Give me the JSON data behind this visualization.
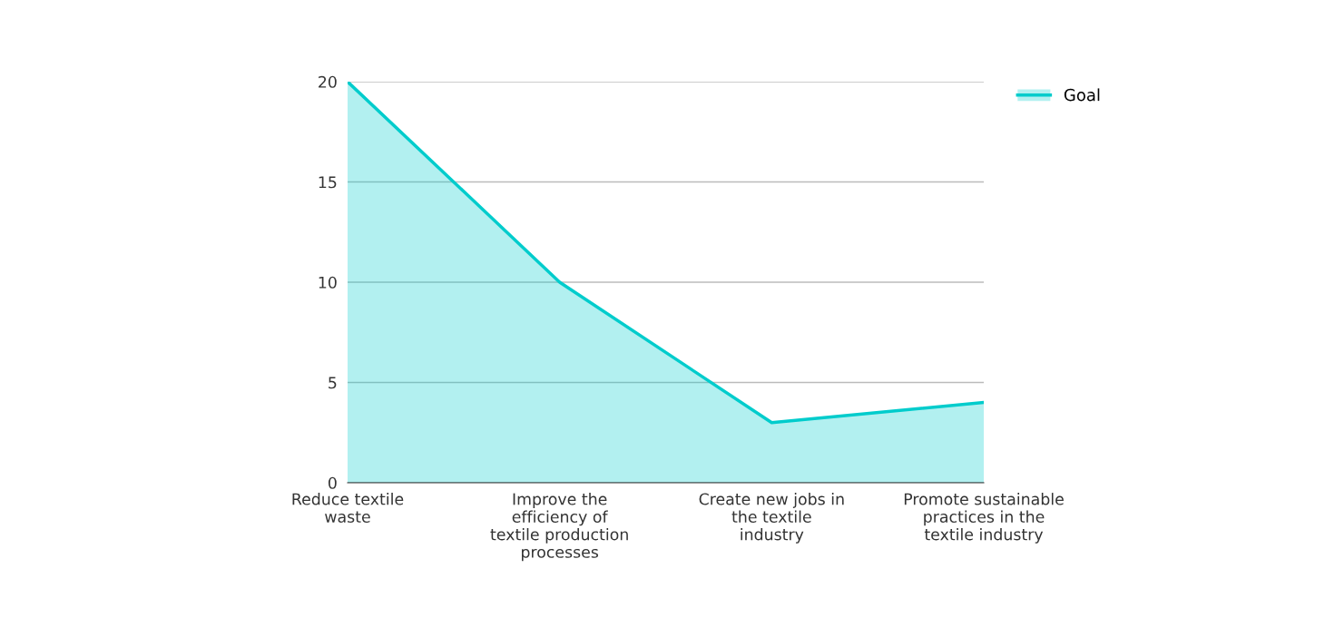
{
  "chart_data": {
    "type": "area",
    "categories": [
      "Reduce textile waste",
      "Improve the efficiency of textile production processes",
      "Create new jobs in the textile industry",
      "Promote sustainable practices in the textile industry"
    ],
    "series": [
      {
        "name": "Goal",
        "color": "#00cccc",
        "values": [
          20,
          10,
          3,
          4
        ]
      }
    ],
    "ylim": [
      0,
      20
    ],
    "yticks": [
      0,
      5,
      10,
      15,
      20
    ],
    "grid": "y",
    "legend": "top right"
  }
}
